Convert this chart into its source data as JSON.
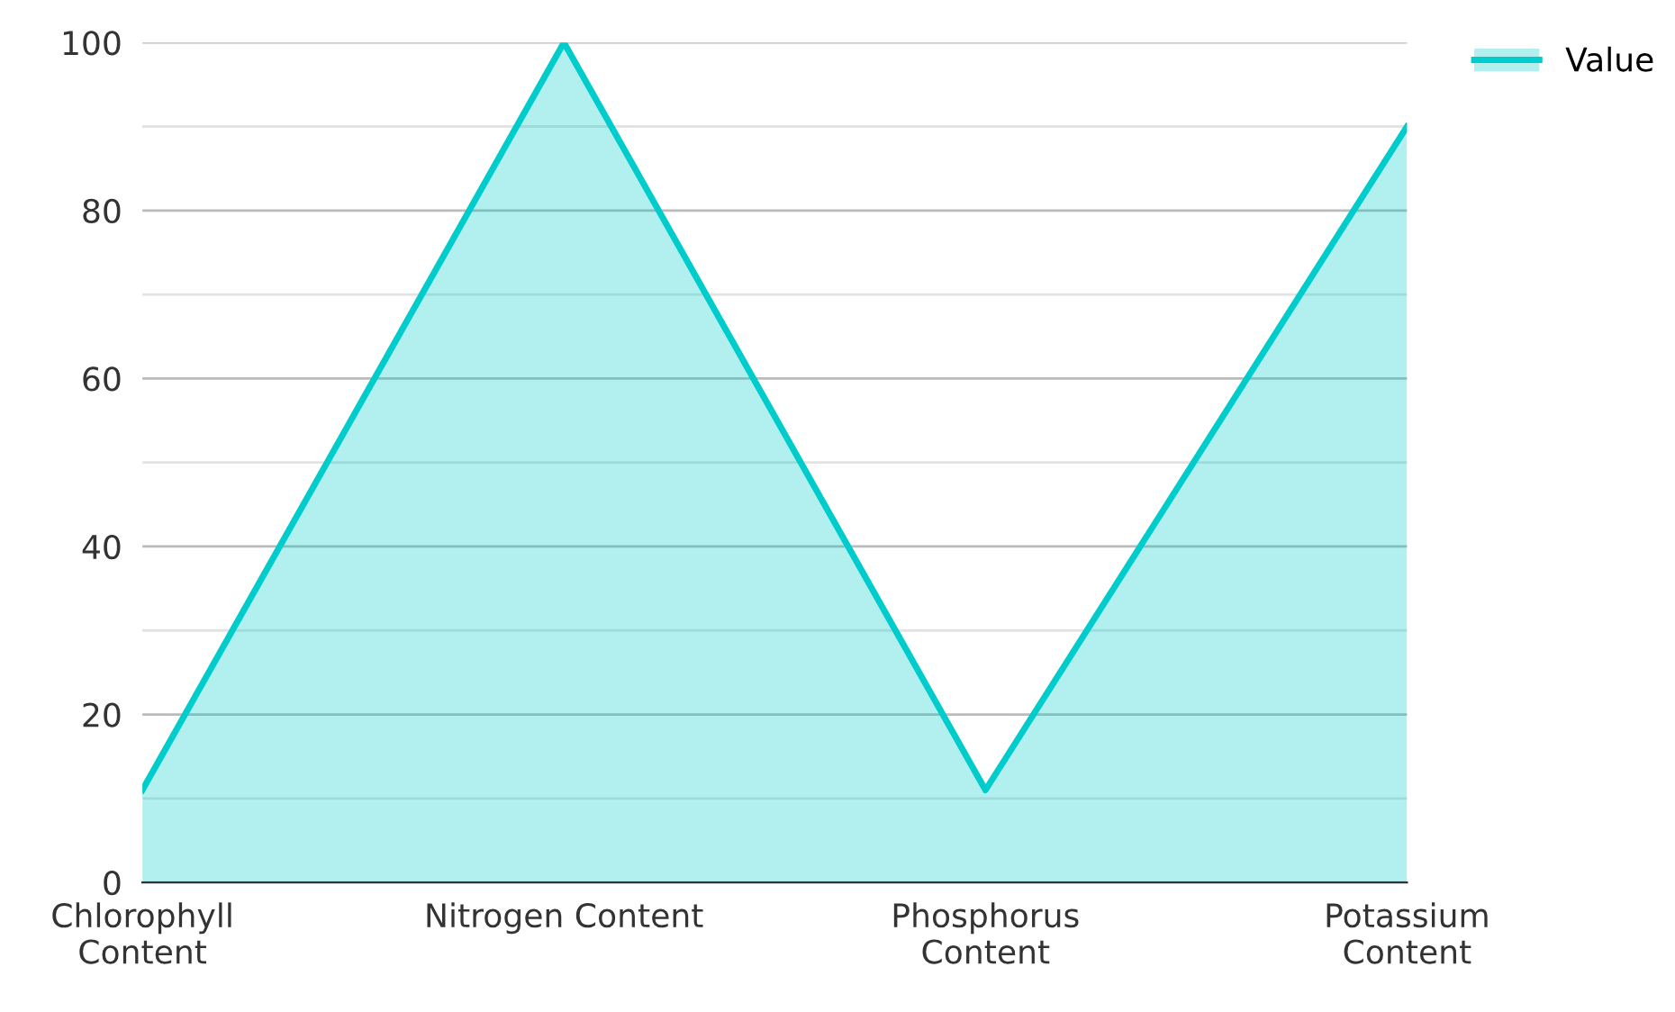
{
  "chart_data": {
    "type": "area",
    "categories": [
      "Chlorophyll\nContent",
      "Nitrogen Content",
      "Phosphorus\nContent",
      "Potassium\nContent"
    ],
    "series": [
      {
        "name": "Value",
        "color": "#00cccc",
        "values": [
          11,
          100,
          11,
          90
        ]
      }
    ],
    "ylim": [
      0,
      100
    ],
    "yticks": [
      0,
      {
        "value": 10,
        "label": null
      },
      20,
      {
        "value": 30,
        "label": null
      },
      40,
      {
        "value": 50,
        "label": null
      },
      60,
      {
        "value": 70,
        "label": null
      },
      80,
      {
        "value": 90,
        "label": null
      },
      100
    ],
    "grid": "y",
    "legend": "top right"
  }
}
